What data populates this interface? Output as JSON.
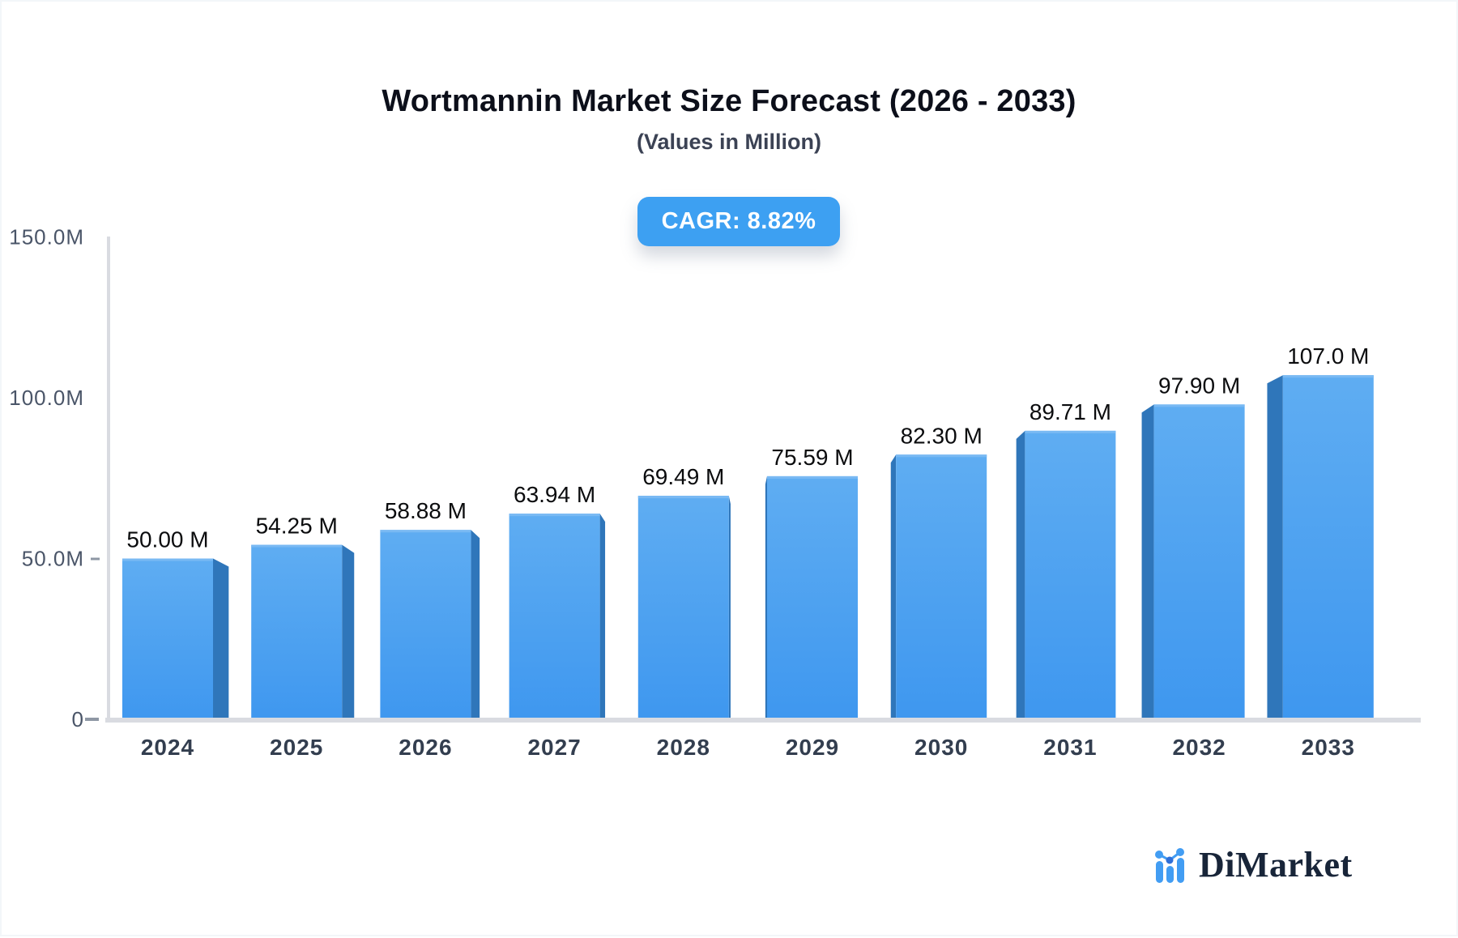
{
  "header": {
    "title": "Wortmannin Market Size Forecast (2026 - 2033)",
    "subtitle": "(Values in Million)",
    "cagr_label": "CAGR: 8.82%"
  },
  "chart_data": {
    "type": "bar",
    "title": "Wortmannin Market Size Forecast (2026 - 2033)",
    "subtitle": "(Values in Million)",
    "categories": [
      "2024",
      "2025",
      "2026",
      "2027",
      "2028",
      "2029",
      "2030",
      "2031",
      "2032",
      "2033"
    ],
    "values": [
      50.0,
      54.25,
      58.88,
      63.94,
      69.49,
      75.59,
      82.3,
      89.71,
      97.9,
      107.0
    ],
    "value_labels": [
      "50.00 M",
      "54.25 M",
      "58.88 M",
      "63.94 M",
      "69.49 M",
      "75.59 M",
      "82.30 M",
      "89.71 M",
      "97.90 M",
      "107.0 M"
    ],
    "xlabel": "",
    "ylabel": "",
    "ylim": [
      0,
      150
    ],
    "y_ticks": [
      {
        "value": 0,
        "label": "0"
      },
      {
        "value": 50,
        "label": "50.0M"
      },
      {
        "value": 100,
        "label": "100.0M"
      },
      {
        "value": 150,
        "label": "150.0M"
      }
    ],
    "grid": false,
    "legend": "none",
    "style": "3d-extruded-bars"
  },
  "footer": {
    "brand": "DiMarket"
  },
  "colors": {
    "accent": "#3da0f2",
    "bar_gradient_top": "#5fadf2",
    "bar_gradient_bottom": "#3e97ef",
    "bar_top_highlight": "#79b9f3",
    "bar_side": "#2f76ba",
    "axis_line": "#d9dbe1",
    "tick_mark": "#8e97a4",
    "y_label_color": "#4a5568",
    "x_label_color": "#333e4f",
    "value_label_color": "#0b0c0e",
    "logo_blue": "#429df3",
    "logo_navy": "#182539"
  },
  "icons": {
    "logo_icon": "mini-bar-chart-with-trend-dots"
  }
}
